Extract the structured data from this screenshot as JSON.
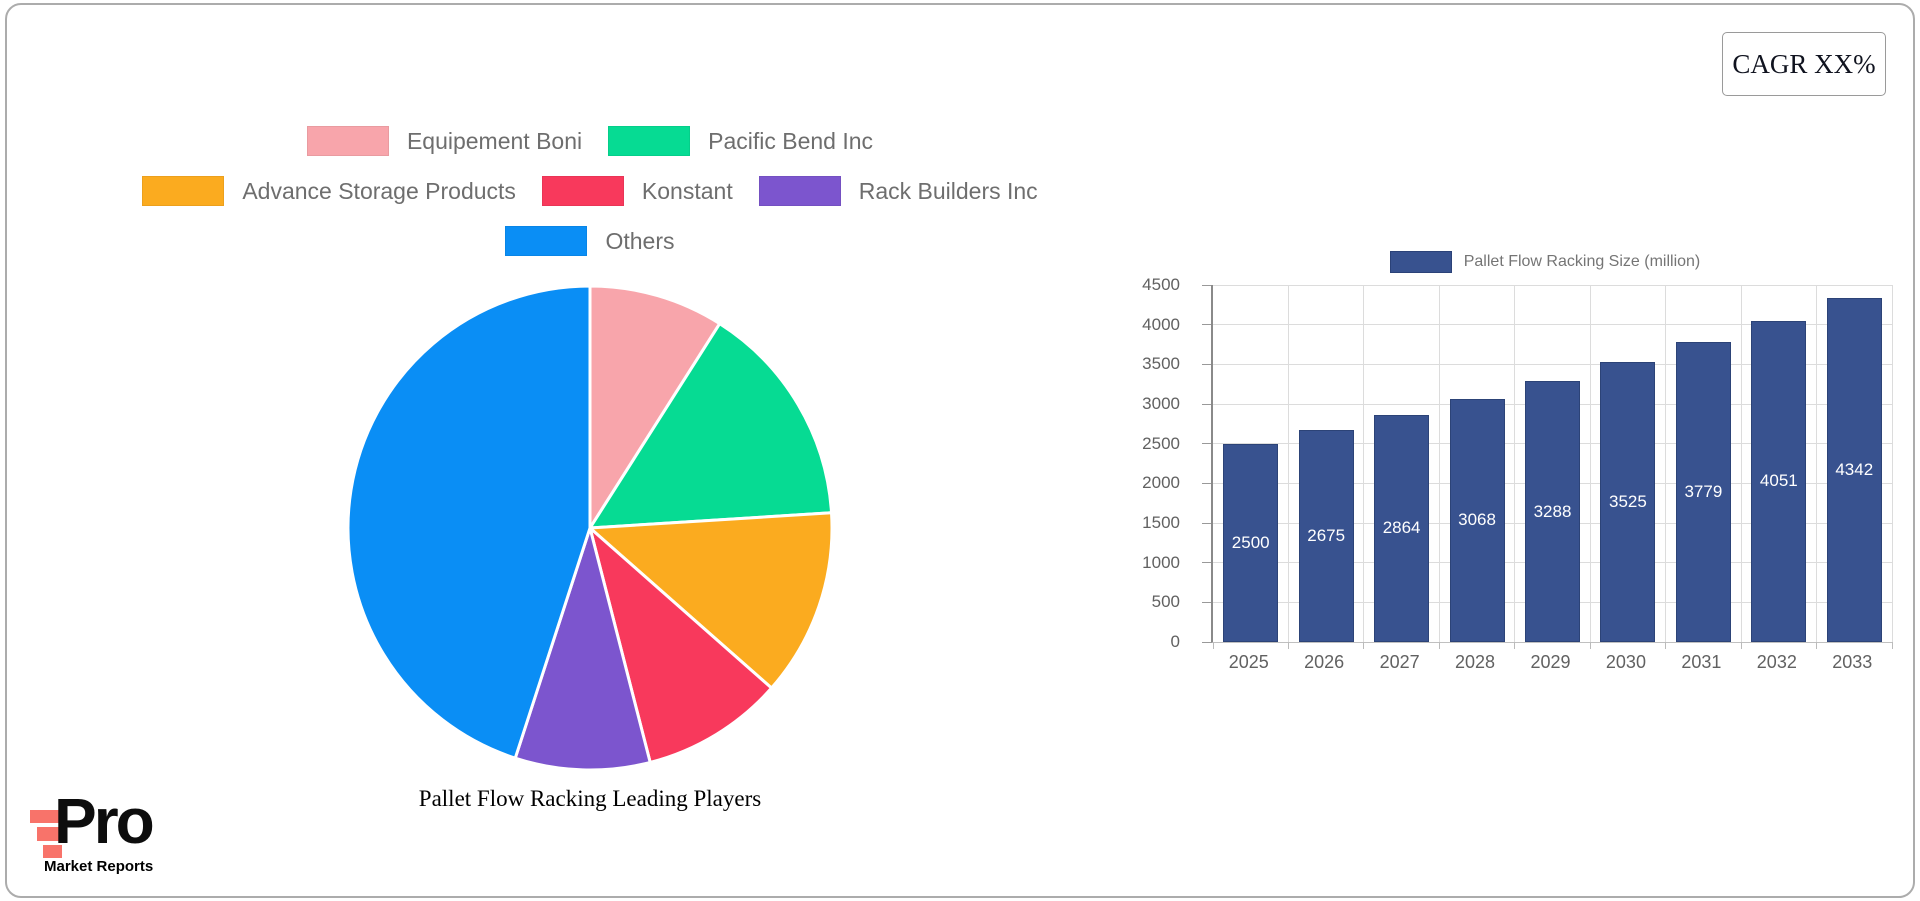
{
  "cagr": {
    "label": "CAGR XX%"
  },
  "logo": {
    "name": "Pro",
    "subtitle": "Market Reports",
    "bar_color": "#F8736A"
  },
  "pie": {
    "legend_rows": [
      [
        0,
        1
      ],
      [
        2,
        3,
        4
      ],
      [
        5
      ]
    ]
  },
  "colors": {
    "card_border": "#ACACAC",
    "legend_text": "#6E6E6E",
    "axis_text": "#616161",
    "gridline": "#DCDCDC",
    "bar_fill": "#38528F"
  },
  "chart_data": [
    {
      "type": "pie",
      "title": "Pallet Flow Racking Leading Players",
      "labels": [
        "Equipement Boni",
        "Pacific Bend Inc",
        "Advance Storage Products",
        "Konstant",
        "Rack Builders Inc",
        "Others"
      ],
      "values": [
        9,
        15,
        12.5,
        9.5,
        9,
        45
      ],
      "unit": "percent (estimated from slice angles)",
      "colors": [
        "#F8A5AB",
        "#06DB93",
        "#FBAB1F",
        "#F8395C",
        "#7C55CE",
        "#0A8EF5"
      ],
      "start_angle_deg": 0,
      "direction": "clockwise",
      "legend_position": "top",
      "slice_gap_color": "#FFFFFF"
    },
    {
      "type": "bar",
      "series_name": "Pallet Flow Racking Size (million)",
      "categories": [
        "2025",
        "2026",
        "2027",
        "2028",
        "2029",
        "2030",
        "2031",
        "2032",
        "2033"
      ],
      "values": [
        2500,
        2675,
        2864,
        3068,
        3288,
        3525,
        3779,
        4051,
        4342
      ],
      "ylim": [
        0,
        4500
      ],
      "y_ticks": [
        0,
        500,
        1000,
        1500,
        2000,
        2500,
        3000,
        3500,
        4000,
        4500
      ],
      "bar_color": "#38528F",
      "value_label_color": "#FFFFFF",
      "grid": true,
      "legend_position": "top"
    }
  ]
}
